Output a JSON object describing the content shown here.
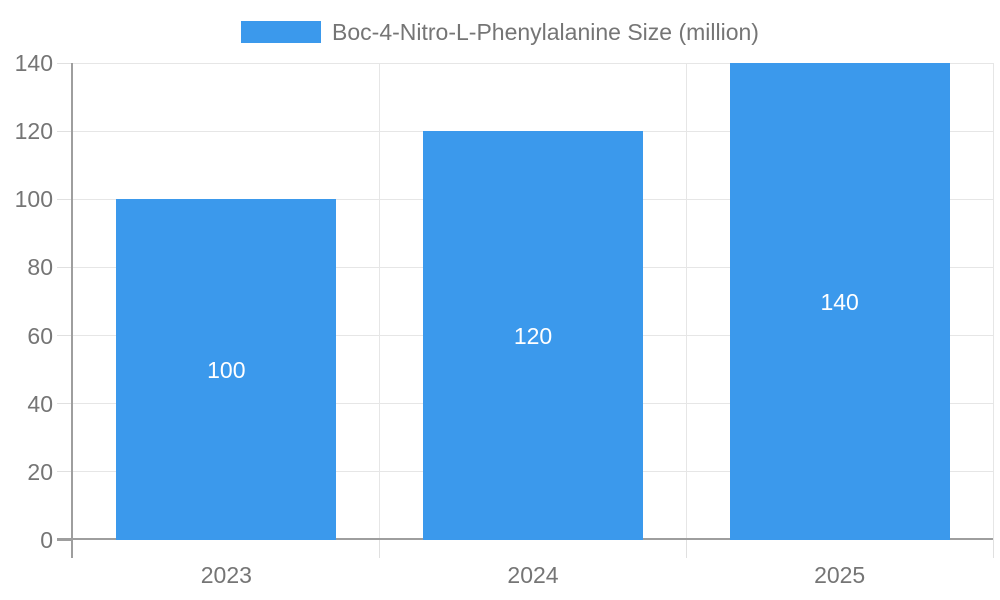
{
  "chart_data": {
    "type": "bar",
    "title": "",
    "xlabel": "",
    "ylabel": "",
    "legend": "Boc-4-Nitro-L-Phenylalanine Size (million)",
    "legend_position": "top",
    "categories": [
      "2023",
      "2024",
      "2025"
    ],
    "series": [
      {
        "name": "Boc-4-Nitro-L-Phenylalanine Size (million)",
        "values": [
          100,
          120,
          140
        ]
      }
    ],
    "data_labels": [
      "100",
      "120",
      "140"
    ],
    "ylim": [
      0,
      140
    ],
    "yticks": [
      0,
      20,
      40,
      60,
      80,
      100,
      120,
      140
    ],
    "ytick_labels": [
      "0",
      "20",
      "40",
      "60",
      "80",
      "100",
      "120",
      "140"
    ],
    "grid": true,
    "colors": {
      "bar": "#3b99ec",
      "axis": "#9e9e9e",
      "gridline": "#e6e6e6",
      "tick": "#e0e0e0",
      "axis_label_text": "#757575",
      "legend_text": "#757575",
      "data_label_text": "#ffffff",
      "background": "#ffffff"
    }
  }
}
